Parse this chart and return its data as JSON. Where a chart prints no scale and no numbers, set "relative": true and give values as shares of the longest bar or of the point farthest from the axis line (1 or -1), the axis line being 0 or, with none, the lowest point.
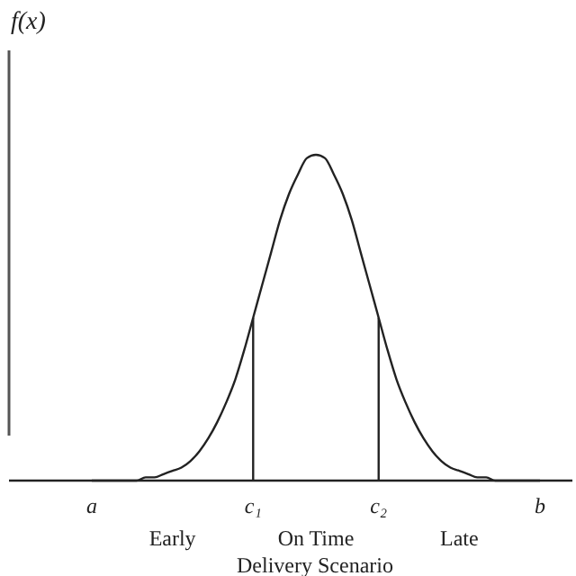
{
  "chart_data": {
    "type": "line",
    "relative": true,
    "xlabel": "Delivery Scenario",
    "ylabel": "f(x)",
    "categories": [
      "a",
      null,
      null,
      null,
      null,
      null,
      null,
      null,
      null,
      null,
      null,
      null,
      null,
      null,
      null,
      null,
      null,
      null,
      "c₁",
      null,
      null,
      null,
      null,
      null,
      null,
      null,
      null,
      null,
      null,
      null,
      null,
      null,
      "c₂",
      null,
      null,
      null,
      null,
      null,
      null,
      null,
      null,
      null,
      null,
      null,
      null,
      null,
      null,
      null,
      null,
      null,
      "b"
    ],
    "series": [
      {
        "color": "#222222",
        "values": [
          0,
          0,
          0,
          0,
          0,
          0,
          0.01,
          0.01,
          0.02,
          0.03,
          0.04,
          0.06,
          0.09,
          0.13,
          0.18,
          0.24,
          0.31,
          0.4,
          0.5,
          0.6,
          0.7,
          0.8,
          0.88,
          0.94,
          0.99,
          1,
          0.99,
          0.94,
          0.88,
          0.8,
          0.7,
          0.6,
          0.5,
          0.4,
          0.31,
          0.24,
          0.18,
          0.13,
          0.09,
          0.06,
          0.04,
          0.03,
          0.02,
          0.01,
          0.01,
          0,
          0,
          0,
          0,
          0,
          0
        ]
      }
    ],
    "ref_lines": [
      {
        "axis": "x",
        "value": "c₁",
        "color": "#222222"
      },
      {
        "axis": "x",
        "value": "c₂",
        "color": "#222222"
      }
    ],
    "annotations": [
      "Early",
      "On Time",
      "Late"
    ],
    "grid": false,
    "marker": "none",
    "line_style": "solid"
  }
}
